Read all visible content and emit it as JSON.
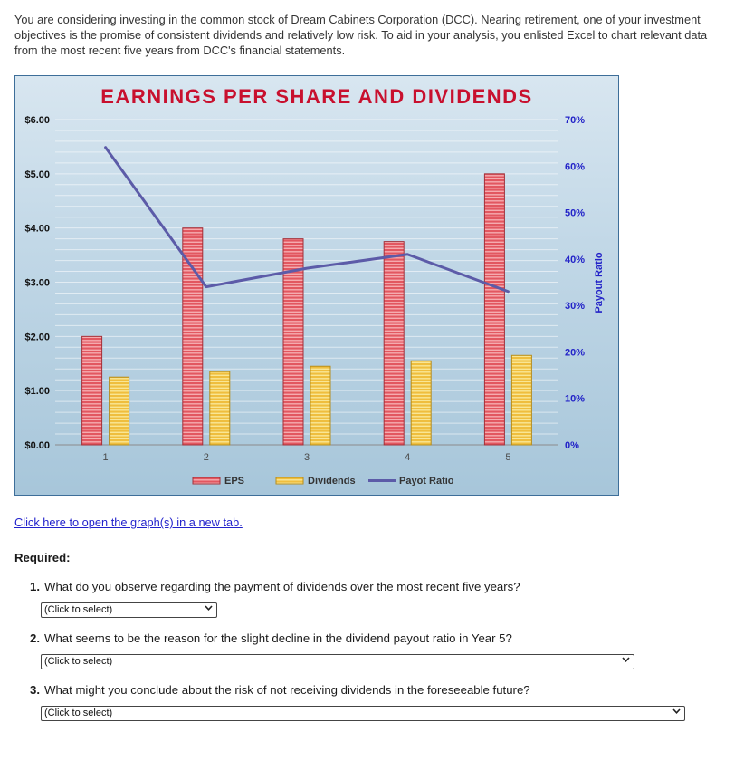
{
  "intro": "You are considering investing in the common stock of Dream Cabinets Corporation (DCC). Nearing retirement, one of your investment objectives is the promise of consistent dividends and relatively low risk. To aid in your analysis, you enlisted Excel to chart relevant data from the most recent five years from DCC's financial statements.",
  "colors": {
    "chart_title": "#C8102E",
    "link": "#2222CC",
    "right_axis_text": "#2323C8",
    "chart_border": "#3D6E99"
  },
  "chart_data": {
    "type": "bar",
    "title": "EARNINGS PER SHARE AND DIVIDENDS",
    "categories": [
      "1",
      "2",
      "3",
      "4",
      "5"
    ],
    "series": [
      {
        "name": "EPS",
        "type": "bar",
        "axis": "left",
        "color": "#E25760",
        "stripe": "#F5ABAF",
        "outline": "#A33039",
        "values": [
          2.0,
          4.0,
          3.8,
          3.75,
          5.0
        ]
      },
      {
        "name": "Dividends",
        "type": "bar",
        "axis": "left",
        "color": "#EFBE3E",
        "stripe": "#F9E694",
        "outline": "#B68D1C",
        "values": [
          1.25,
          1.35,
          1.45,
          1.55,
          1.65
        ]
      },
      {
        "name": "Payot Ratio",
        "type": "line",
        "axis": "right",
        "color": "#5C5BA8",
        "values": [
          64,
          34,
          38,
          41,
          33
        ]
      }
    ],
    "left_axis": {
      "min": 0,
      "max": 6,
      "ticks": [
        "$6.00",
        "$5.00",
        "$4.00",
        "$3.00",
        "$2.00",
        "$1.00",
        "$0.00"
      ]
    },
    "right_axis": {
      "min": 0,
      "max": 70,
      "label": "Payout Ratio",
      "ticks": [
        "70%",
        "60%",
        "50%",
        "40%",
        "30%",
        "20%",
        "10%",
        "0%"
      ]
    },
    "legend_position": "bottom",
    "grid": true
  },
  "link_text": "Click here to open the graph(s) in a new tab.",
  "required": {
    "label": "Required:",
    "questions": [
      {
        "number": "1.",
        "text": "What do you observe regarding the payment of dividends over the most recent five years?",
        "select_value": "(Click to select)"
      },
      {
        "number": "2.",
        "text": "What seems to be the reason for the slight decline in the dividend payout ratio in Year 5?",
        "select_value": "(Click to select)"
      },
      {
        "number": "3.",
        "text": "What might you conclude about the risk of not receiving dividends in the foreseeable future?",
        "select_value": "(Click to select)"
      }
    ]
  }
}
